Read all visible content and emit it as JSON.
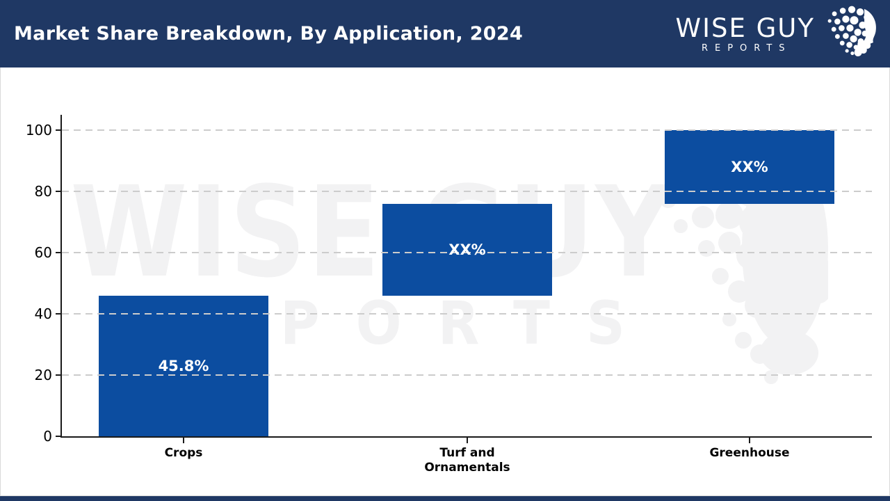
{
  "header": {
    "title": "Market Share Breakdown, By Application, 2024",
    "logo": {
      "wordmark": "WISE GUY",
      "subtext": "REPORTS"
    }
  },
  "watermark": {
    "line1": "WISE GUY",
    "line2": "REPORTS"
  },
  "chart_data": {
    "type": "bar",
    "subtype": "waterfall",
    "title": "Market Share Breakdown, By Application, 2024",
    "categories": [
      "Crops",
      "Turf and\nOrnamentals",
      "Greenhouse"
    ],
    "segments": [
      {
        "category": "Crops",
        "start": 0,
        "end": 45.8,
        "label": "45.8%"
      },
      {
        "category": "Turf and Ornamentals",
        "start": 45.8,
        "end": 75.8,
        "label": "XX%"
      },
      {
        "category": "Greenhouse",
        "start": 75.8,
        "end": 100,
        "label": "XX%"
      }
    ],
    "yticks": [
      0,
      20,
      40,
      60,
      80,
      100
    ],
    "ylim": [
      0,
      100
    ],
    "grid": true,
    "legend": false,
    "bar_color": "#0c4da0"
  },
  "colors": {
    "header_bg": "#1f3864",
    "footer_bg": "#1f3864",
    "bar": "#0c4da0",
    "grid": "#cccccc",
    "axis": "#1a1a1a",
    "watermark": "#f2f2f3"
  }
}
